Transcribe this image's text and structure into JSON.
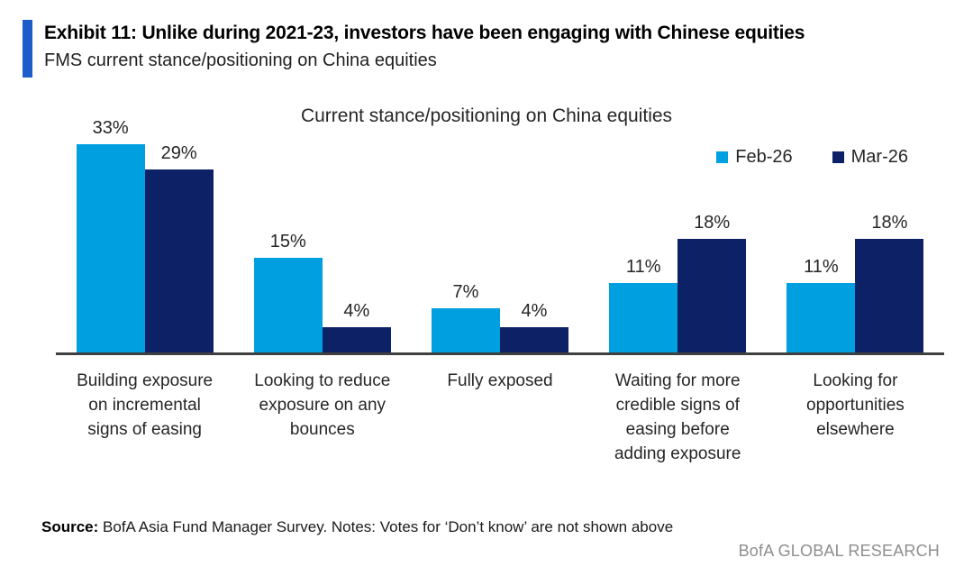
{
  "accent_color": "#1c5dc9",
  "header": {
    "exhibit_title": "Exhibit 11: Unlike during 2021-23, investors have been engaging with Chinese equities",
    "subtitle": "FMS current stance/positioning on China equities"
  },
  "chart_data": {
    "type": "bar",
    "title": "Current stance/positioning on China equities",
    "categories": [
      "Building exposure\non incremental\nsigns of easing",
      "Looking to reduce\nexposure on any\nbounces",
      "Fully exposed",
      "Waiting for more\ncredible signs of\neasing before\nadding exposure",
      "Looking for\nopportunities\nelsewhere"
    ],
    "series": [
      {
        "name": "Feb-26",
        "color": "#00a0e0",
        "values": [
          33,
          15,
          7,
          11,
          11
        ]
      },
      {
        "name": "Mar-26",
        "color": "#0d2167",
        "values": [
          29,
          4,
          4,
          18,
          18
        ]
      }
    ],
    "value_suffix": "%",
    "ylim": [
      0,
      35
    ],
    "grid": false,
    "legend_position": "top-right",
    "xlabel": "",
    "ylabel": ""
  },
  "footer": {
    "source_label": "Source:",
    "source_text": " BofA Asia Fund Manager Survey. Notes: Votes for ‘Don’t know’ are not shown above",
    "brand": "BofA GLOBAL RESEARCH"
  }
}
